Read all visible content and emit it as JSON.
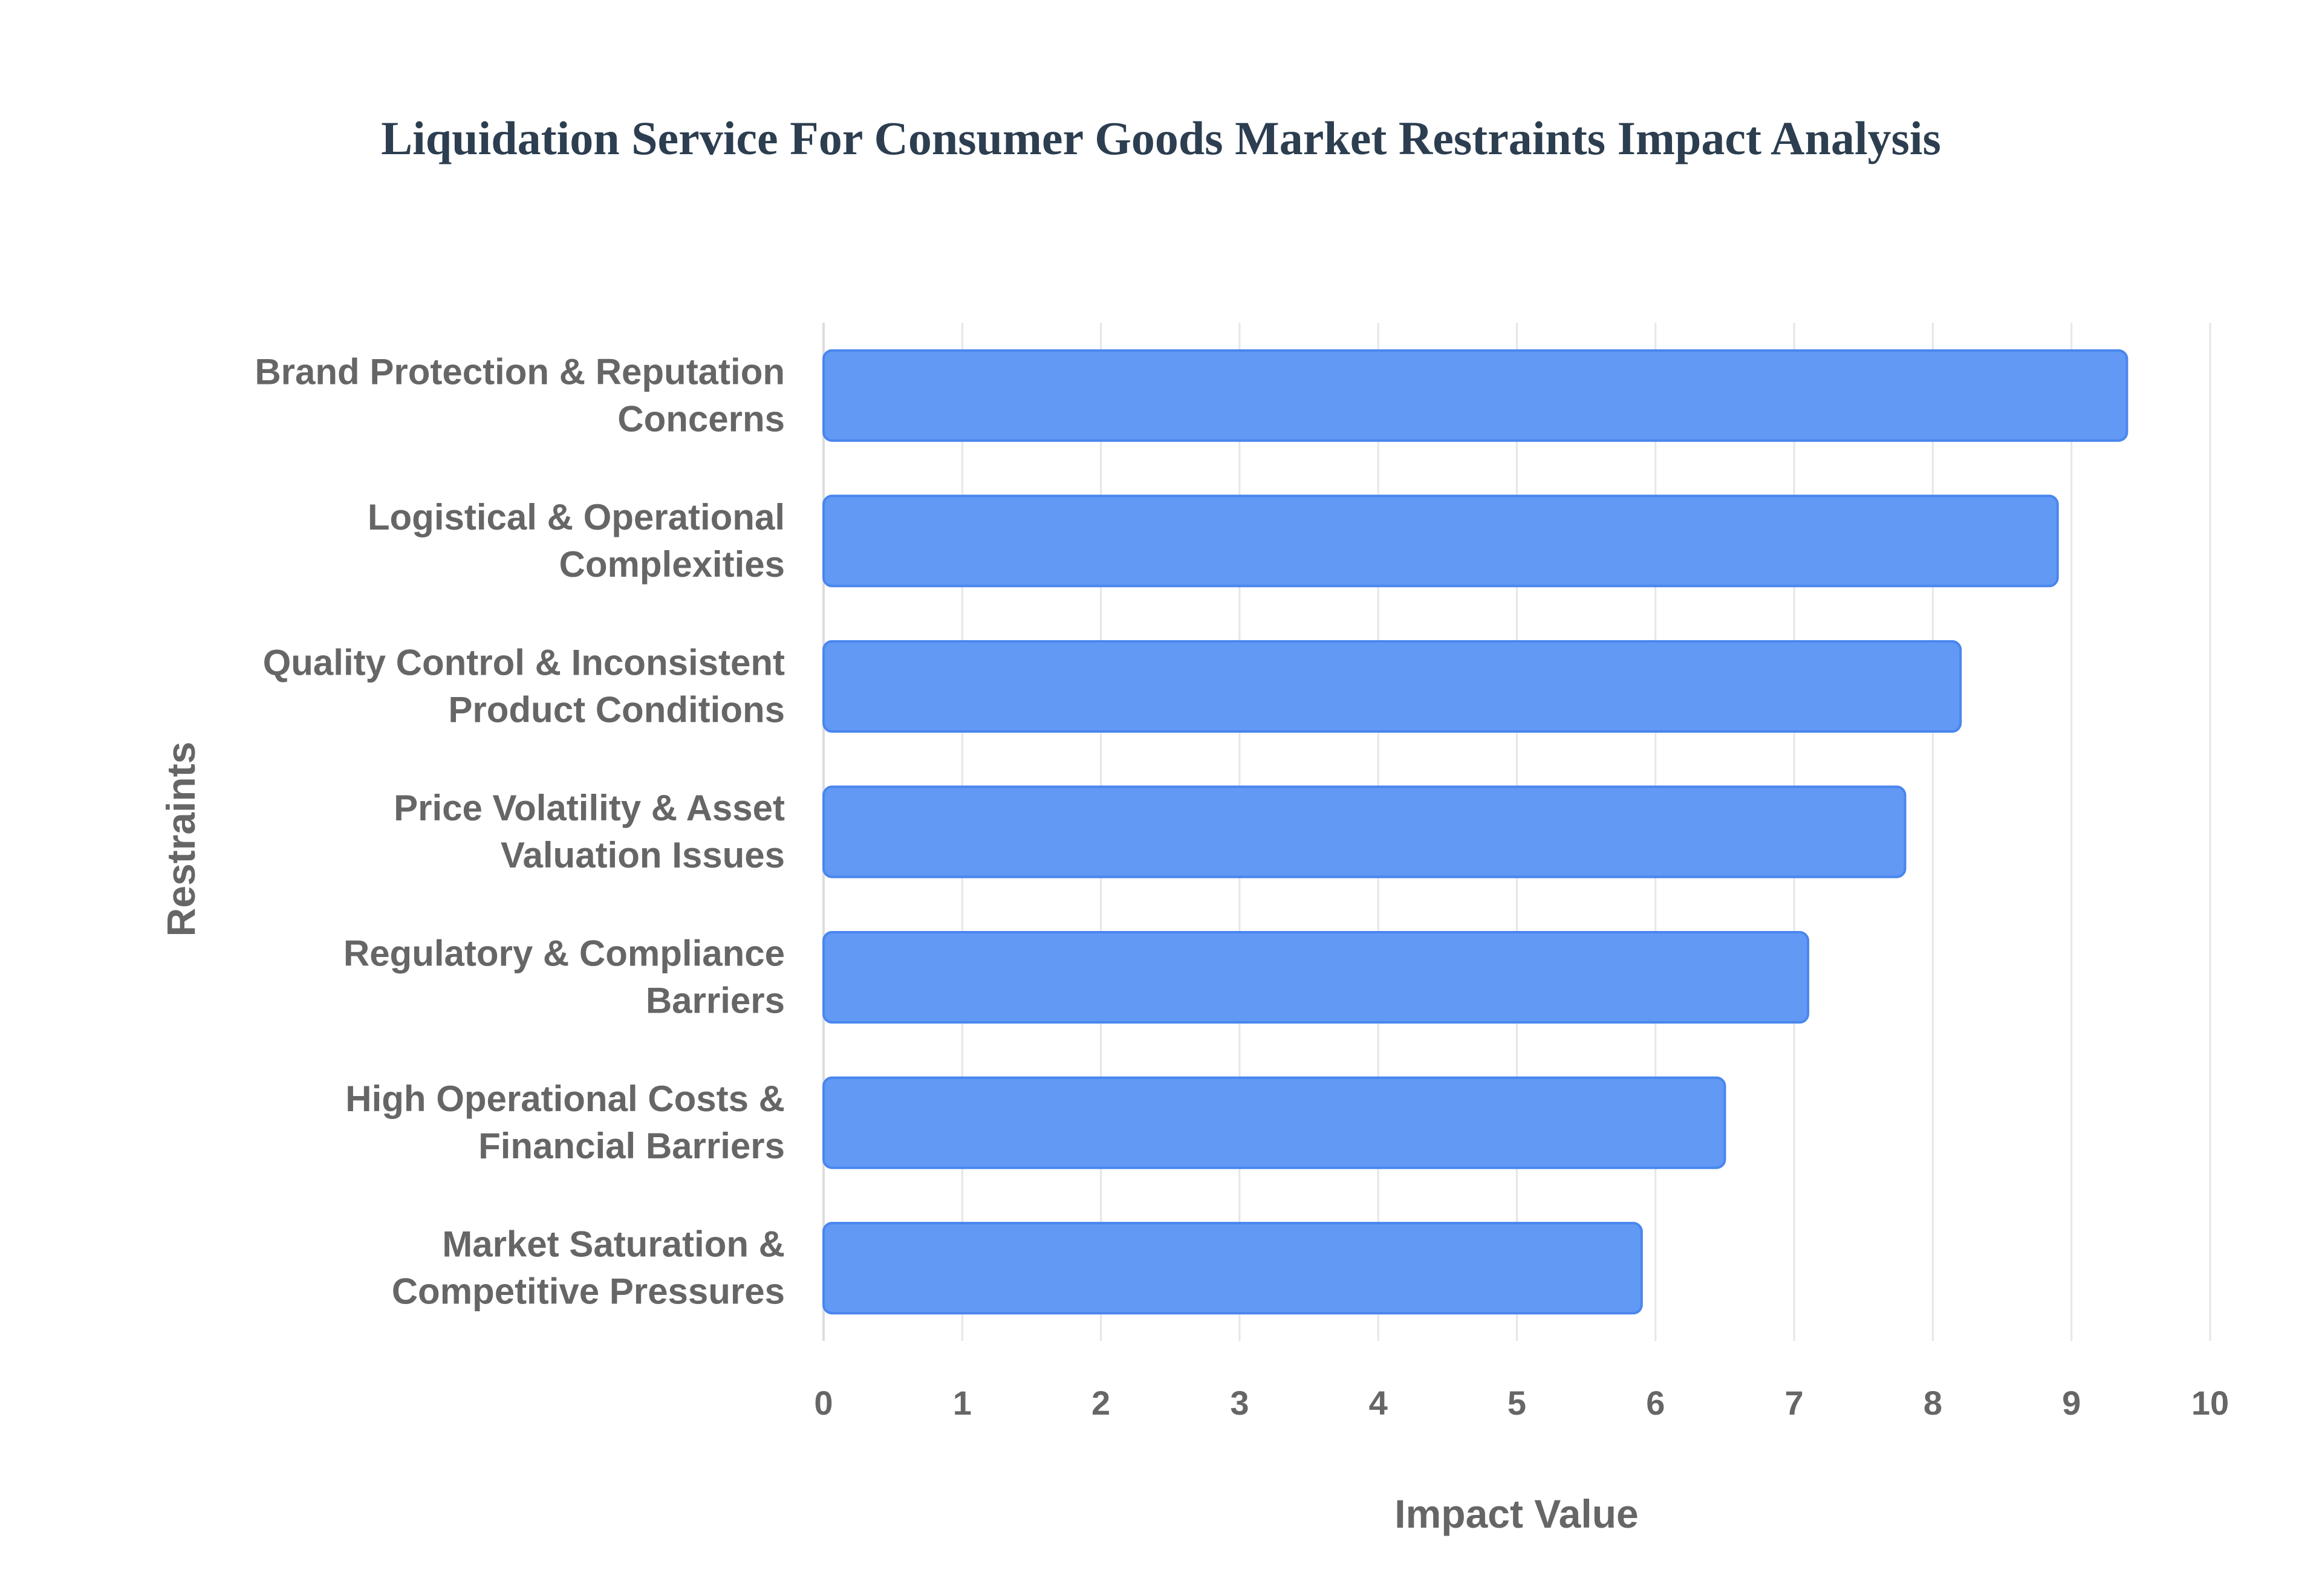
{
  "chart_data": {
    "type": "bar",
    "orientation": "horizontal",
    "title": "Liquidation Service For Consumer Goods Market Restraints Impact Analysis",
    "xlabel": "Impact Value",
    "ylabel": "Restraints",
    "xlim": [
      0,
      10
    ],
    "x_ticks": [
      "0",
      "1",
      "2",
      "3",
      "4",
      "5",
      "6",
      "7",
      "8",
      "9",
      "10"
    ],
    "grid": true,
    "categories": [
      [
        "Brand Protection & Reputation",
        "Concerns"
      ],
      [
        "Logistical & Operational",
        "Complexities"
      ],
      [
        "Quality Control & Inconsistent",
        "Product Conditions"
      ],
      [
        "Price Volatility & Asset",
        "Valuation Issues"
      ],
      [
        "Regulatory & Compliance",
        "Barriers"
      ],
      [
        "High Operational Costs &",
        "Financial Barriers"
      ],
      [
        "Market Saturation &",
        "Competitive Pressures"
      ]
    ],
    "values": [
      9.4,
      8.9,
      8.2,
      7.8,
      7.1,
      6.5,
      5.9
    ],
    "colors": {
      "bar_fill": "#6199F5",
      "bar_stroke": "#4A86EE",
      "title": "#2C3E50",
      "text": "#666666",
      "grid": "#E6E6E6",
      "axis": "#DDDDDD"
    }
  }
}
